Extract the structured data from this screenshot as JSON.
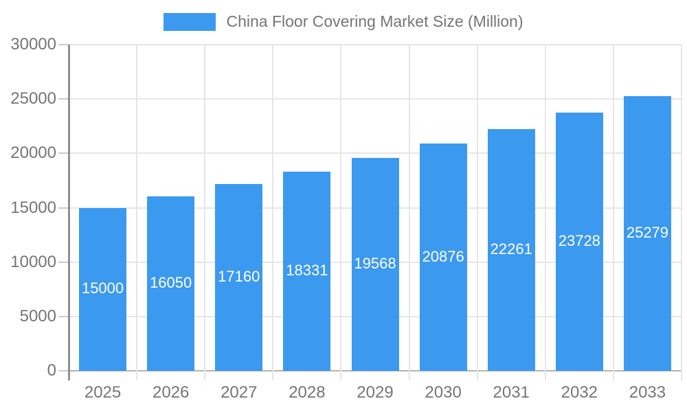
{
  "legend": {
    "label": "China Floor Covering Market Size (Million)"
  },
  "chart_data": {
    "type": "bar",
    "title": "China Floor Covering Market Size (Million)",
    "categories": [
      "2025",
      "2026",
      "2027",
      "2028",
      "2029",
      "2030",
      "2031",
      "2032",
      "2033"
    ],
    "values": [
      15000,
      16050,
      17160,
      18331,
      19568,
      20876,
      22261,
      23728,
      25279
    ],
    "xlabel": "",
    "ylabel": "",
    "ylim": [
      0,
      30000
    ],
    "ytick_interval": 5000,
    "yticks": [
      0,
      5000,
      10000,
      15000,
      20000,
      25000,
      30000
    ],
    "grid": true,
    "legend_position": "top-center",
    "value_labels": "inside-center"
  },
  "colors": {
    "bar": "#3b99f0",
    "grid_line": "#e6e6e6",
    "y_axis_line": "#8f8f8f",
    "baseline": "#b3b3b3",
    "tick": "#cccccc",
    "axis_text": "#757575",
    "bar_label_text": "#ffffff",
    "background": "#ffffff"
  }
}
